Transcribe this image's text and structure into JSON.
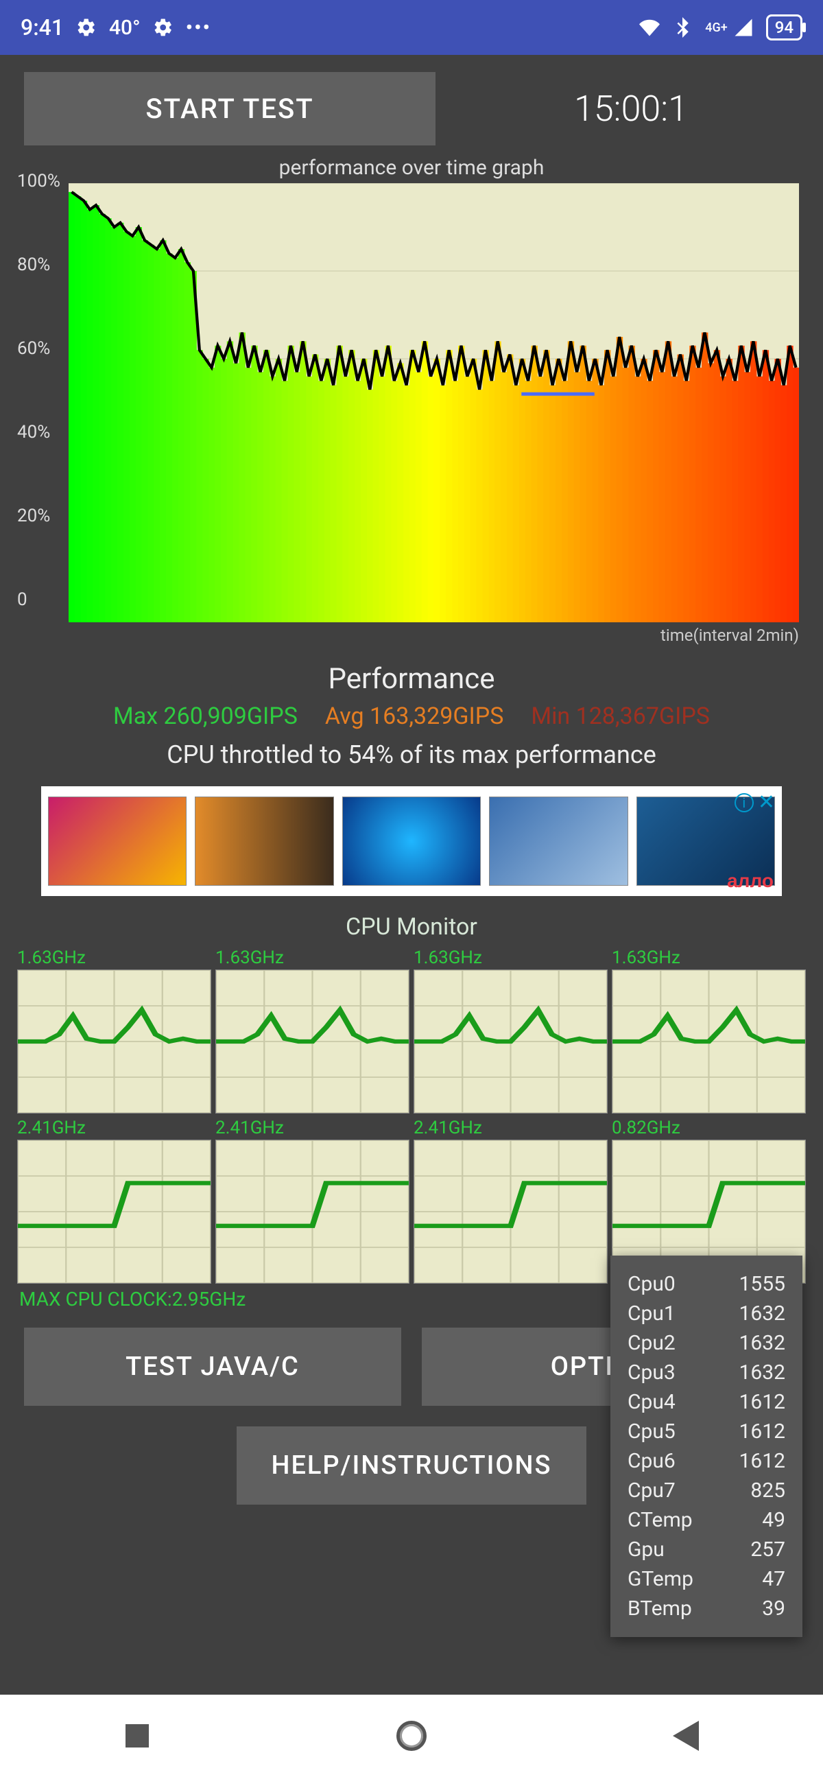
{
  "status": {
    "time": "9:41",
    "temp": "40°",
    "battery": "94",
    "network_label": "4G+"
  },
  "top": {
    "start_label": "START TEST",
    "timer": "15:00:1"
  },
  "chart": {
    "title": "performance over time graph",
    "type": "area",
    "ylim": [
      0,
      100
    ],
    "yticks": [
      "100%",
      "80%",
      "60%",
      "40%",
      "20%",
      "0"
    ],
    "xaxis_label": "time(interval 2min)",
    "background_color": "#eaeaca",
    "line_color": "#000000",
    "line_width": 4,
    "avg_line_color": "#4a6cff",
    "avg_value": 52,
    "gradient_stops": [
      "#00ff00",
      "#7fff00",
      "#ffff00",
      "#ff8c00",
      "#ff3000"
    ],
    "grid_color": "#c9c9a8",
    "values": [
      98,
      97,
      96,
      94,
      95,
      93,
      92,
      90,
      91,
      89,
      88,
      90,
      87,
      86,
      85,
      87,
      84,
      83,
      85,
      82,
      80,
      62,
      60,
      58,
      63,
      60,
      64,
      59,
      66,
      58,
      63,
      57,
      62,
      56,
      60,
      55,
      63,
      57,
      64,
      56,
      61,
      55,
      60,
      54,
      63,
      56,
      62,
      55,
      60,
      53,
      62,
      56,
      63,
      55,
      59,
      54,
      62,
      57,
      64,
      56,
      60,
      54,
      62,
      55,
      63,
      56,
      60,
      53,
      62,
      55,
      64,
      57,
      61,
      54,
      60,
      55,
      63,
      56,
      62,
      54,
      60,
      55,
      64,
      57,
      63,
      55,
      60,
      54,
      62,
      56,
      65,
      58,
      63,
      56,
      60,
      55,
      62,
      57,
      64,
      56,
      61,
      55,
      63,
      58,
      66,
      59,
      62,
      56,
      60,
      55,
      63,
      57,
      64,
      56,
      62,
      55,
      60,
      54,
      63,
      58
    ]
  },
  "perf": {
    "heading": "Performance",
    "max": "Max 260,909GIPS",
    "avg": "Avg 163,329GIPS",
    "min": "Min 128,367GIPS",
    "throttle": "CPU throttled to 54% of its max performance",
    "max_color": "#2ecc40",
    "avg_color": "#e67e22",
    "min_color": "#a03020"
  },
  "ad": {
    "brand": "алло",
    "brand_color": "#e63946"
  },
  "monitor": {
    "title": "CPU Monitor",
    "line_color": "#1a9c1a",
    "grid_color": "#c9c9a8",
    "bg_color": "#eaeaca",
    "cores": [
      {
        "freq": "1.63GHz",
        "trace": [
          50,
          50,
          50,
          55,
          68,
          52,
          50,
          50,
          60,
          72,
          55,
          50,
          52,
          50,
          50
        ]
      },
      {
        "freq": "1.63GHz",
        "trace": [
          50,
          50,
          50,
          55,
          68,
          52,
          50,
          50,
          60,
          72,
          55,
          50,
          52,
          50,
          50
        ]
      },
      {
        "freq": "1.63GHz",
        "trace": [
          50,
          50,
          50,
          55,
          68,
          52,
          50,
          50,
          60,
          72,
          55,
          50,
          52,
          50,
          50
        ]
      },
      {
        "freq": "1.63GHz",
        "trace": [
          50,
          50,
          50,
          55,
          68,
          52,
          50,
          50,
          60,
          72,
          55,
          50,
          52,
          50,
          50
        ]
      },
      {
        "freq": "2.41GHz",
        "trace": [
          40,
          40,
          40,
          40,
          40,
          40,
          40,
          40,
          70,
          70,
          70,
          70,
          70,
          70,
          70
        ]
      },
      {
        "freq": "2.41GHz",
        "trace": [
          40,
          40,
          40,
          40,
          40,
          40,
          40,
          40,
          70,
          70,
          70,
          70,
          70,
          70,
          70
        ]
      },
      {
        "freq": "2.41GHz",
        "trace": [
          40,
          40,
          40,
          40,
          40,
          40,
          40,
          40,
          70,
          70,
          70,
          70,
          70,
          70,
          70
        ]
      },
      {
        "freq": "0.82GHz",
        "trace": [
          40,
          40,
          40,
          40,
          40,
          40,
          40,
          40,
          70,
          70,
          70,
          70,
          70,
          70,
          70
        ]
      }
    ],
    "max_clock": "MAX CPU CLOCK:2.95GHz"
  },
  "buttons": {
    "java": "TEST JAVA/C",
    "options": "OPTIONS",
    "help": "HELP/INSTRUCTIONS"
  },
  "popup": {
    "rows": [
      [
        "Cpu0",
        "1555"
      ],
      [
        "Cpu1",
        "1632"
      ],
      [
        "Cpu2",
        "1632"
      ],
      [
        "Cpu3",
        "1632"
      ],
      [
        "Cpu4",
        "1612"
      ],
      [
        "Cpu5",
        "1612"
      ],
      [
        "Cpu6",
        "1612"
      ],
      [
        "Cpu7",
        "825"
      ],
      [
        "CTemp",
        "49"
      ],
      [
        "Gpu",
        "257"
      ],
      [
        "GTemp",
        "47"
      ],
      [
        "BTemp",
        "39"
      ]
    ]
  }
}
